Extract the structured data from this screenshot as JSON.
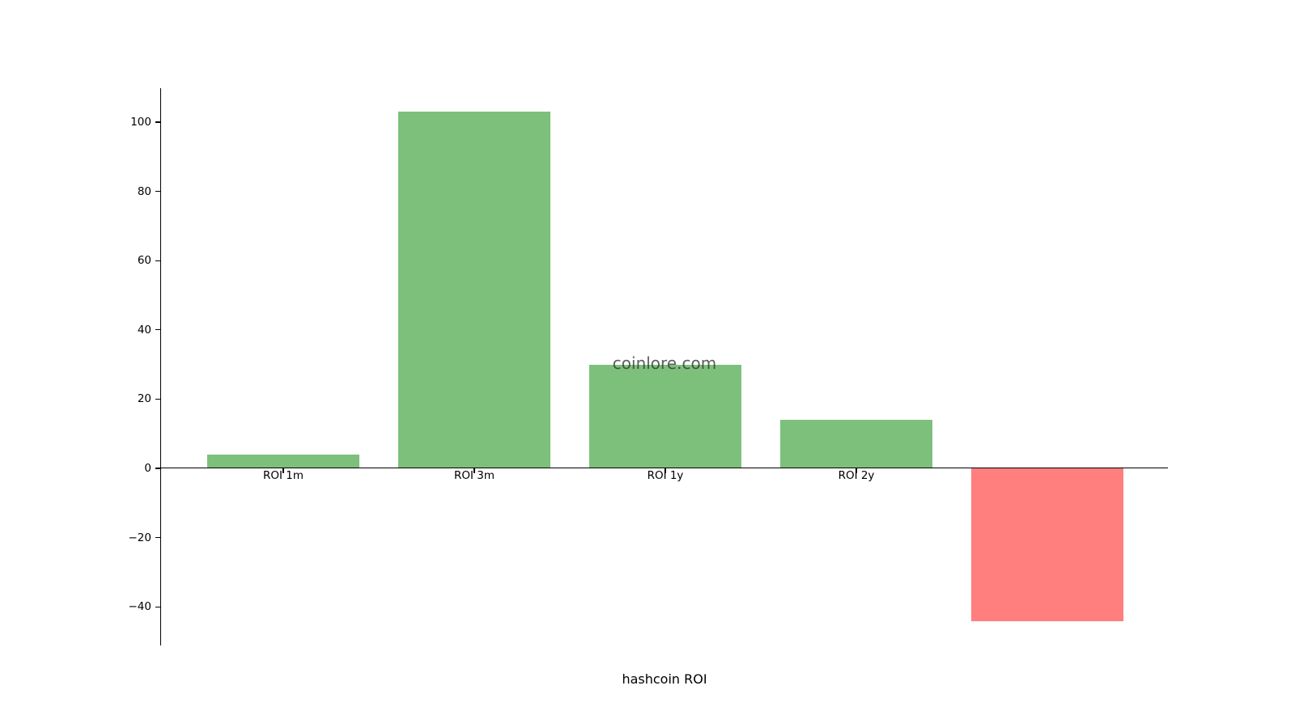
{
  "chart_data": {
    "type": "bar",
    "categories": [
      "ROI 1m",
      "ROI 3m",
      "ROI 1y",
      "ROI 2y",
      ""
    ],
    "values": [
      4,
      103,
      30,
      14,
      -44
    ],
    "title": "",
    "xlabel": "hashcoin ROI",
    "ylabel": "",
    "ylim": [
      -51,
      110
    ],
    "yticks": [
      100,
      80,
      60,
      40,
      20,
      0,
      -20,
      -40
    ],
    "grid": false,
    "legend_position": "none",
    "colors": {
      "positive_bar": "#7cc07c",
      "negative_bar": "#ff7f7f",
      "axis": "#000000",
      "watermark_text": "#323232"
    },
    "watermark": "coinlore.com"
  }
}
